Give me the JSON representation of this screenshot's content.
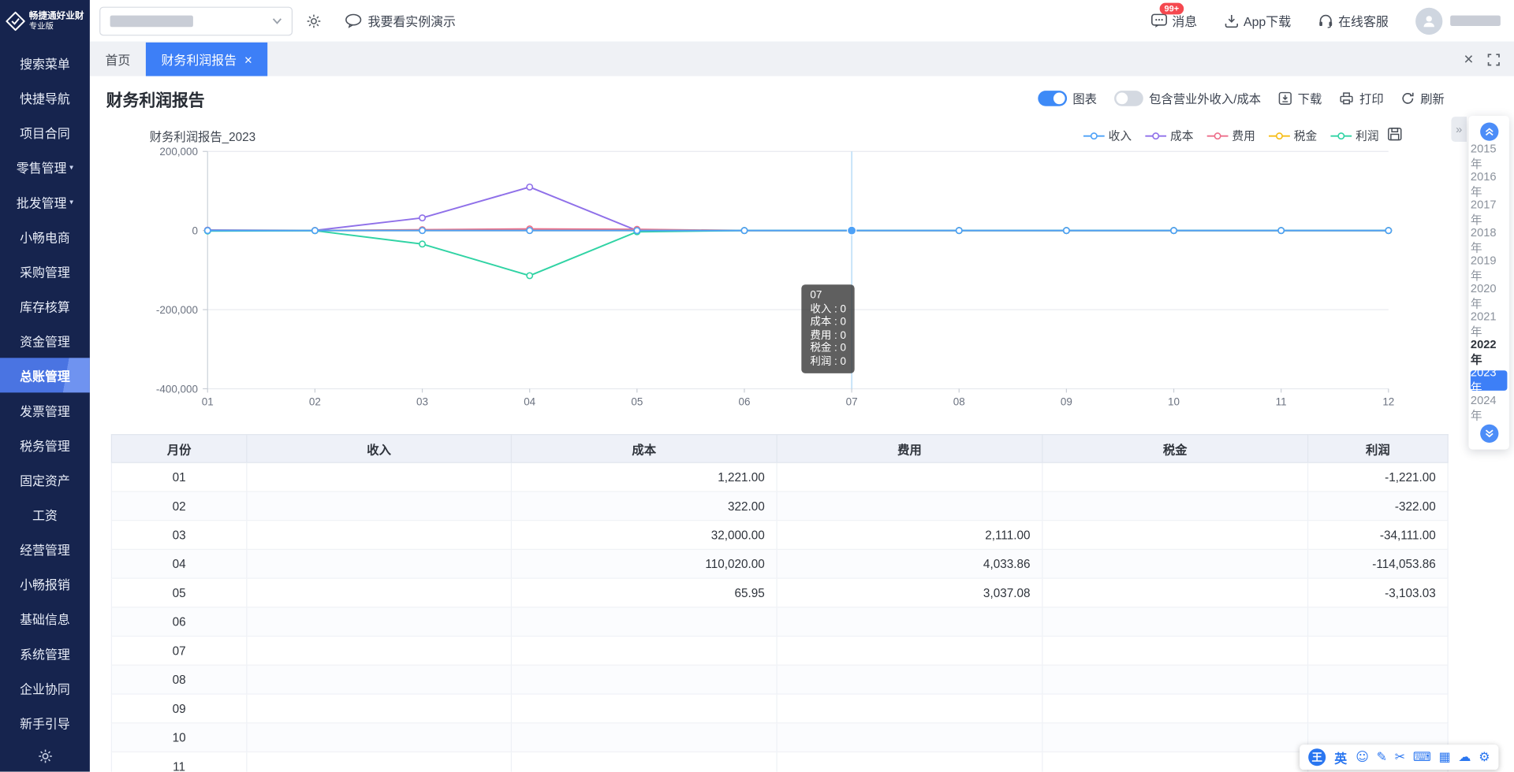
{
  "app": {
    "logo_title": "畅捷通好业财",
    "logo_subtitle": "专业版"
  },
  "sidebar": {
    "items": [
      {
        "key": "search-menu",
        "label": "搜索菜单"
      },
      {
        "key": "quick-nav",
        "label": "快捷导航"
      },
      {
        "key": "project-contract",
        "label": "项目合同"
      },
      {
        "key": "retail-mgmt",
        "label": "零售管理",
        "arrow": true
      },
      {
        "key": "wholesale-mgmt",
        "label": "批发管理",
        "arrow": true
      },
      {
        "key": "ecommerce",
        "label": "小畅电商"
      },
      {
        "key": "procurement",
        "label": "采购管理"
      },
      {
        "key": "inventory-accounting",
        "label": "库存核算"
      },
      {
        "key": "funds-mgmt",
        "label": "资金管理"
      },
      {
        "key": "general-ledger",
        "label": "总账管理",
        "active": true
      },
      {
        "key": "invoice-mgmt",
        "label": "发票管理"
      },
      {
        "key": "tax-mgmt",
        "label": "税务管理"
      },
      {
        "key": "fixed-assets",
        "label": "固定资产"
      },
      {
        "key": "payroll",
        "label": "工资"
      },
      {
        "key": "operations-mgmt",
        "label": "经营管理"
      },
      {
        "key": "expense-claim",
        "label": "小畅报销"
      },
      {
        "key": "base-info",
        "label": "基础信息"
      },
      {
        "key": "system-mgmt",
        "label": "系统管理"
      },
      {
        "key": "enterprise-collab",
        "label": "企业协同"
      },
      {
        "key": "beginner-guide",
        "label": "新手引导"
      }
    ]
  },
  "topbar": {
    "demo_label": "我要看实例演示",
    "messages_label": "消息",
    "messages_badge": "99+",
    "app_download_label": "App下载",
    "support_label": "在线客服"
  },
  "tabs": [
    {
      "key": "home",
      "label": "首页"
    },
    {
      "key": "profit-report",
      "label": "财务利润报告",
      "active": true,
      "closable": true
    }
  ],
  "page": {
    "title": "财务利润报告",
    "controls": {
      "chart_toggle": "图表",
      "include_toggle": "包含营业外收入/成本",
      "download": "下载",
      "print": "打印",
      "refresh": "刷新"
    }
  },
  "chart_data": {
    "type": "line",
    "title": "财务利润报告_2023",
    "categories": [
      "01",
      "02",
      "03",
      "04",
      "05",
      "06",
      "07",
      "08",
      "09",
      "10",
      "11",
      "12"
    ],
    "series": [
      {
        "key": "income",
        "name": "收入",
        "color": "#4da1f7",
        "values": [
          0,
          0,
          0,
          0,
          0,
          0,
          0,
          0,
          0,
          0,
          0,
          0
        ]
      },
      {
        "key": "cost",
        "name": "成本",
        "color": "#8f70e9",
        "values": [
          1221,
          322,
          32000,
          110020,
          65.95,
          0,
          0,
          0,
          0,
          0,
          0,
          0
        ]
      },
      {
        "key": "expense",
        "name": "费用",
        "color": "#ed6e8a",
        "values": [
          0,
          0,
          2111,
          4033.86,
          3037.08,
          0,
          0,
          0,
          0,
          0,
          0,
          0
        ]
      },
      {
        "key": "tax",
        "name": "税金",
        "color": "#f6bd16",
        "values": [
          0,
          0,
          0,
          0,
          0,
          0,
          0,
          0,
          0,
          0,
          0,
          0
        ]
      },
      {
        "key": "profit",
        "name": "利润",
        "color": "#30d3a4",
        "values": [
          -1221,
          -322,
          -34111,
          -114053.86,
          -3103.03,
          0,
          0,
          0,
          0,
          0,
          0,
          0
        ]
      }
    ],
    "ylim": [
      -400000,
      200000
    ],
    "yticks": [
      200000,
      0,
      -200000,
      -400000
    ],
    "ytick_labels": [
      "200,000",
      "0",
      "-200,000",
      "-400,000"
    ],
    "grid": true,
    "legend_position": "top-right",
    "highlight_month": "07",
    "tooltip": {
      "title": "07",
      "rows": [
        [
          "收入",
          "0"
        ],
        [
          "成本",
          "0"
        ],
        [
          "费用",
          "0"
        ],
        [
          "税金",
          "0"
        ],
        [
          "利润",
          "0"
        ]
      ]
    }
  },
  "table": {
    "headers": [
      "月份",
      "收入",
      "成本",
      "费用",
      "税金",
      "利润"
    ],
    "rows": [
      [
        "01",
        "",
        "1,221.00",
        "",
        "",
        "-1,221.00"
      ],
      [
        "02",
        "",
        "322.00",
        "",
        "",
        "-322.00"
      ],
      [
        "03",
        "",
        "32,000.00",
        "2,111.00",
        "",
        "-34,111.00"
      ],
      [
        "04",
        "",
        "110,020.00",
        "4,033.86",
        "",
        "-114,053.86"
      ],
      [
        "05",
        "",
        "65.95",
        "3,037.08",
        "",
        "-3,103.03"
      ],
      [
        "06",
        "",
        "",
        "",
        "",
        ""
      ],
      [
        "07",
        "",
        "",
        "",
        "",
        ""
      ],
      [
        "08",
        "",
        "",
        "",
        "",
        ""
      ],
      [
        "09",
        "",
        "",
        "",
        "",
        ""
      ],
      [
        "10",
        "",
        "",
        "",
        "",
        ""
      ],
      [
        "11",
        "",
        "",
        "",
        "",
        ""
      ]
    ]
  },
  "year_panel": {
    "years": [
      "2015年",
      "2016年",
      "2017年",
      "2018年",
      "2019年",
      "2020年",
      "2021年",
      "2022年",
      "2023年",
      "2024年"
    ],
    "active_year": "2023年",
    "current_year": "2022年"
  },
  "ime": {
    "logo": "王",
    "mode": "英",
    "icons": [
      "emoji",
      "handwriting",
      "screenshot",
      "keyboard",
      "symbols",
      "cloud",
      "settings"
    ]
  }
}
